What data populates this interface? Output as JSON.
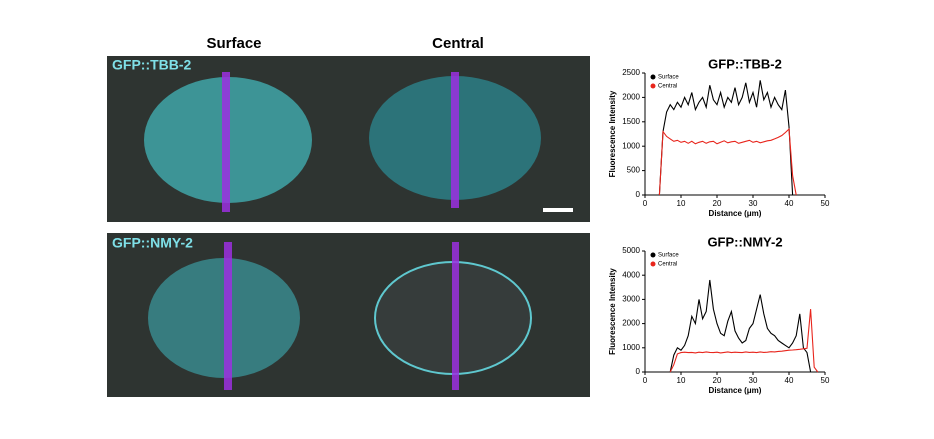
{
  "images": {
    "columns": [
      "Surface",
      "Central"
    ],
    "rows": [
      "GFP::TBB-2",
      "GFP::NMY-2"
    ]
  },
  "chart_data": [
    {
      "type": "line",
      "title": "GFP::TBB-2",
      "xlabel": "Distance (μm)",
      "ylabel": "Fluorescence Intensity",
      "xlim": [
        0,
        50
      ],
      "xticks": [
        0,
        10,
        20,
        30,
        40,
        50
      ],
      "ylim": [
        0,
        2500
      ],
      "yticks": [
        0,
        500,
        1000,
        1500,
        2000,
        2500
      ],
      "legend": "upper left",
      "x": [
        4,
        5,
        6,
        7,
        8,
        9,
        10,
        11,
        12,
        13,
        14,
        15,
        16,
        17,
        18,
        19,
        20,
        21,
        22,
        23,
        24,
        25,
        26,
        27,
        28,
        29,
        30,
        31,
        32,
        33,
        34,
        35,
        36,
        37,
        38,
        39,
        40,
        41,
        42
      ],
      "series": [
        {
          "name": "Surface",
          "color": "#000000",
          "values": [
            0,
            1300,
            1700,
            1850,
            1750,
            1900,
            1800,
            2000,
            1850,
            2100,
            1750,
            1900,
            2000,
            1800,
            2250,
            1950,
            1850,
            2100,
            1800,
            2000,
            1900,
            2200,
            1850,
            2000,
            2300,
            1900,
            2100,
            1800,
            2350,
            1950,
            2100,
            1800,
            2000,
            1850,
            1750,
            2150,
            1400,
            0,
            0
          ]
        },
        {
          "name": "Central",
          "color": "#e8251c",
          "values": [
            0,
            1300,
            1200,
            1150,
            1100,
            1120,
            1080,
            1100,
            1060,
            1100,
            1050,
            1080,
            1100,
            1060,
            1090,
            1100,
            1050,
            1080,
            1110,
            1070,
            1090,
            1100,
            1060,
            1080,
            1100,
            1120,
            1080,
            1100,
            1070,
            1090,
            1110,
            1120,
            1150,
            1180,
            1220,
            1280,
            1350,
            400,
            0
          ]
        }
      ]
    },
    {
      "type": "line",
      "title": "GFP::NMY-2",
      "xlabel": "Distance (μm)",
      "ylabel": "Fluorescence Intensity",
      "xlim": [
        0,
        50
      ],
      "xticks": [
        0,
        10,
        20,
        30,
        40,
        50
      ],
      "ylim": [
        0,
        5000
      ],
      "yticks": [
        0,
        1000,
        2000,
        3000,
        4000,
        5000
      ],
      "legend": "upper left",
      "x": [
        7,
        8,
        9,
        10,
        11,
        12,
        13,
        14,
        15,
        16,
        17,
        18,
        19,
        20,
        21,
        22,
        23,
        24,
        25,
        26,
        27,
        28,
        29,
        30,
        31,
        32,
        33,
        34,
        35,
        36,
        37,
        38,
        39,
        40,
        41,
        42,
        43,
        44,
        45,
        46,
        47,
        48
      ],
      "series": [
        {
          "name": "Surface",
          "color": "#000000",
          "values": [
            0,
            700,
            1000,
            900,
            1100,
            1500,
            2300,
            2000,
            3000,
            2200,
            2500,
            3800,
            2600,
            2000,
            1600,
            1500,
            2100,
            2500,
            1700,
            1400,
            1200,
            1300,
            1800,
            2000,
            2600,
            3200,
            2400,
            1800,
            1600,
            1500,
            1300,
            1200,
            1100,
            1000,
            1200,
            1500,
            2400,
            1000,
            800,
            0,
            0,
            0
          ]
        },
        {
          "name": "Central",
          "color": "#e8251c",
          "values": [
            0,
            300,
            750,
            800,
            820,
            800,
            810,
            790,
            820,
            800,
            830,
            810,
            800,
            820,
            790,
            810,
            830,
            800,
            820,
            810,
            800,
            830,
            810,
            820,
            800,
            830,
            810,
            820,
            840,
            830,
            850,
            860,
            880,
            900,
            910,
            920,
            940,
            960,
            980,
            2600,
            200,
            0
          ]
        }
      ]
    }
  ]
}
